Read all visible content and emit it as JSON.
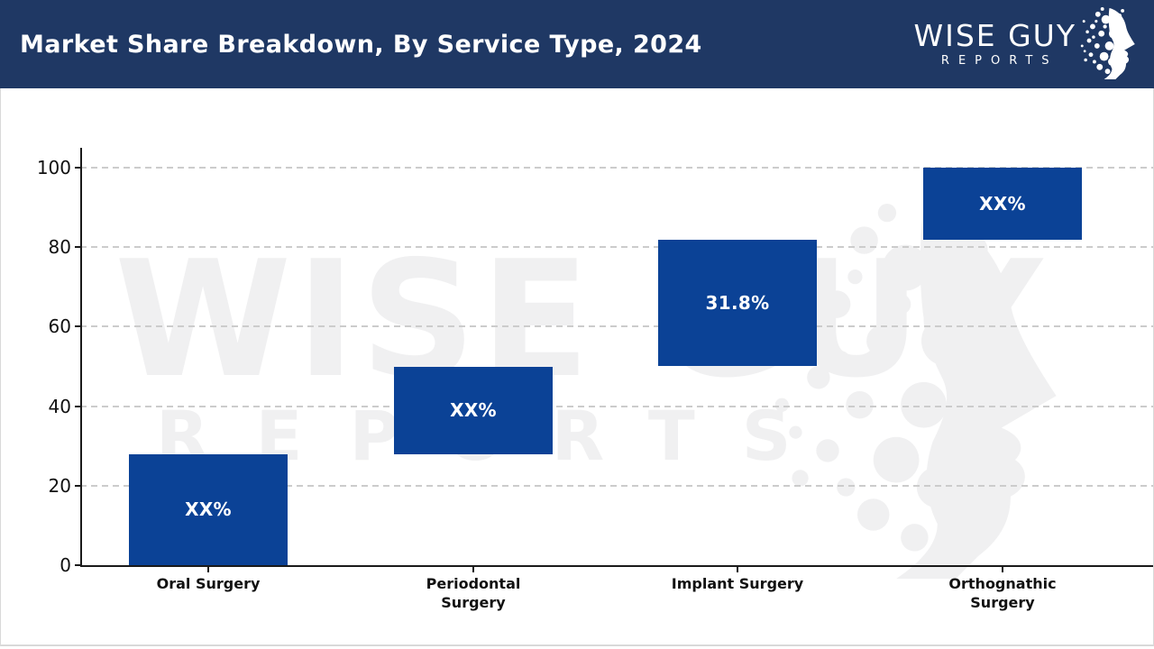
{
  "header": {
    "title": "Market Share Breakdown, By Service Type, 2024",
    "logo": {
      "brand": "WISE GUY",
      "tagline": "REPORTS",
      "icon": "dotted-face-profile-icon"
    }
  },
  "watermark": {
    "brand": "WISE GUY",
    "tagline": "REPORTS",
    "icon": "dotted-face-profile-icon"
  },
  "chart_data": {
    "type": "waterfall",
    "title": "Market Share Breakdown, By Service Type, 2024",
    "categories": [
      "Oral Surgery",
      "Periodontal Surgery",
      "Implant Surgery",
      "Orthognathic Surgery"
    ],
    "series": [
      {
        "name": "Market share (%)",
        "segments": [
          {
            "category": "Oral Surgery",
            "start": 0,
            "end": 28,
            "label": "XX%"
          },
          {
            "category": "Periodontal Surgery",
            "start": 28,
            "end": 50,
            "label": "XX%"
          },
          {
            "category": "Implant Surgery",
            "start": 50,
            "end": 81.8,
            "label": "31.8%"
          },
          {
            "category": "Orthognathic Surgery",
            "start": 81.8,
            "end": 100,
            "label": "XX%"
          }
        ]
      }
    ],
    "xlabel": "",
    "ylabel": "",
    "ylim": [
      0,
      100
    ],
    "yticks": [
      0,
      20,
      40,
      60,
      80,
      100
    ],
    "grid": "horizontal-dashed",
    "legend": "none",
    "bar_color": "#0b4296",
    "value_label_color": "#ffffff"
  },
  "colors": {
    "header_bg": "#1f3864",
    "bar_blue": "#0b4296",
    "gridline": "#cccccc",
    "axis": "#1a1a1a",
    "watermark": "#f0f0f1",
    "frame_border": "#d9d9d9"
  }
}
